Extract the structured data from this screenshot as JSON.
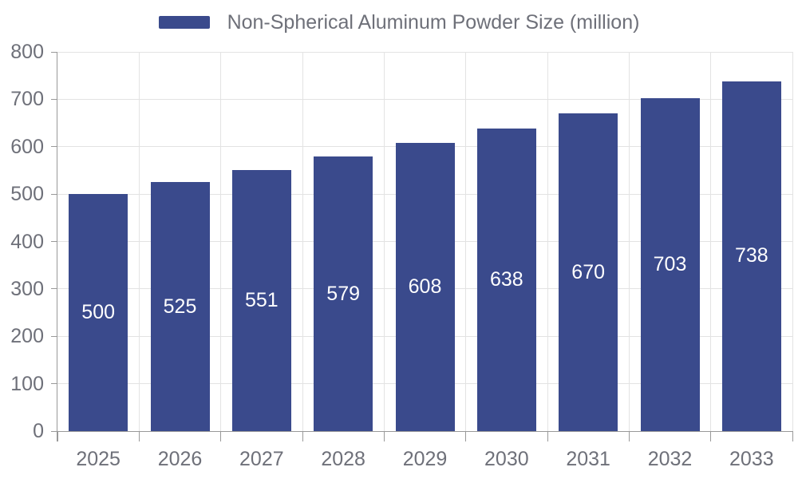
{
  "legend": {
    "position": "top"
  },
  "chart_data": {
    "type": "bar",
    "title": "",
    "categories": [
      "2025",
      "2026",
      "2027",
      "2028",
      "2029",
      "2030",
      "2031",
      "2032",
      "2033"
    ],
    "series": [
      {
        "name": "Non-Spherical Aluminum Powder Size (million)",
        "values": [
          500,
          525,
          551,
          579,
          608,
          638,
          670,
          703,
          738
        ]
      }
    ],
    "xlabel": "",
    "ylabel": "",
    "ylim": [
      0,
      800
    ],
    "yticks": [
      0,
      100,
      200,
      300,
      400,
      500,
      600,
      700,
      800
    ],
    "grid": true,
    "legend_position": "top",
    "value_labels": "centered inside bars",
    "colors": {
      "bar": "#3A4A8C",
      "grid": "#E3E3E3",
      "axis": "#999999",
      "tick_text": "#6E7079",
      "legend_text": "#6E7079",
      "bar_label_text": "#FFFFFF",
      "background": "#FFFFFF"
    }
  }
}
